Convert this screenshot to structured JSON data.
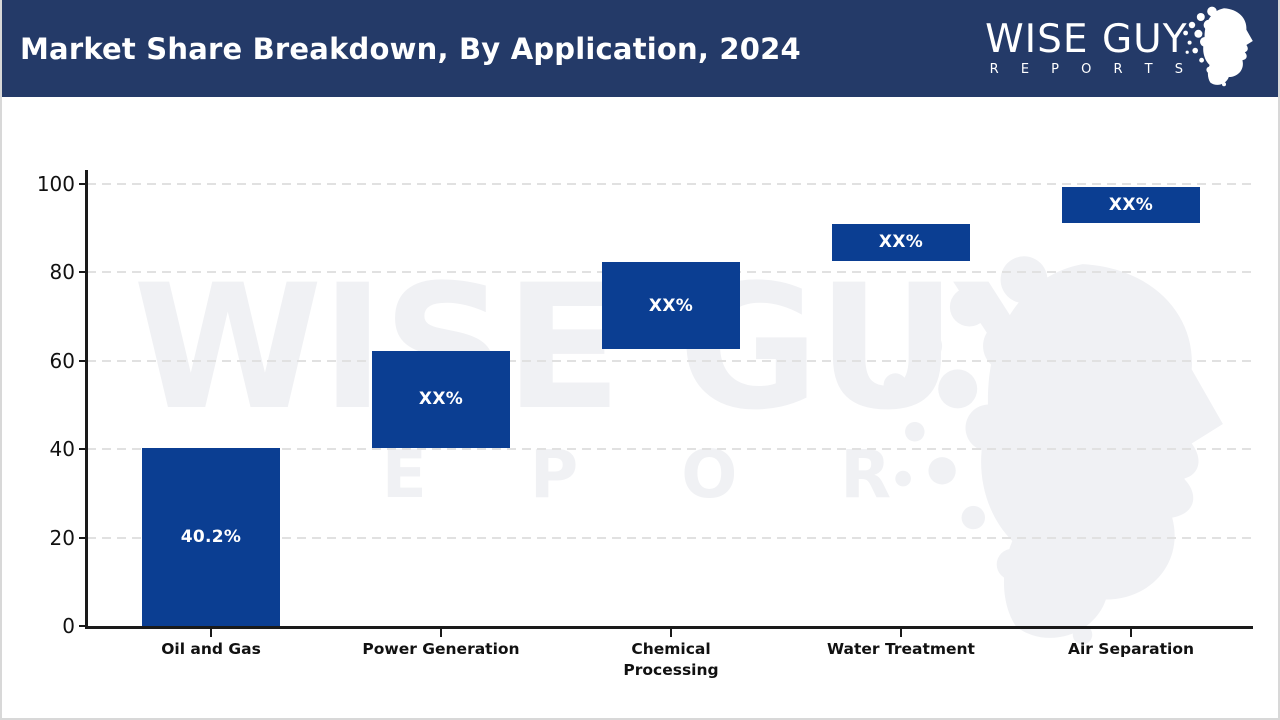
{
  "header": {
    "title": "Market Share Breakdown, By Application, 2024",
    "bg_color": "#243a68",
    "logo": {
      "line1": "WISE GUY",
      "line2": "REPORTS"
    }
  },
  "watermark": {
    "line1": "WISE GUY",
    "line2": "REPORTS"
  },
  "chart_data": {
    "type": "bar",
    "subtype": "waterfall",
    "title": "Market Share Breakdown, By Application, 2024",
    "categories": [
      "Oil and Gas",
      "Power Generation",
      "Chemical\nProcessing",
      "Water Treatment",
      "Air Separation"
    ],
    "segments": [
      {
        "category": "Oil and Gas",
        "start": 0,
        "end": 40.2,
        "label": "40.2%"
      },
      {
        "category": "Power Generation",
        "start": 40.2,
        "end": 62.3,
        "label": "XX%"
      },
      {
        "category": "Chemical Processing",
        "start": 62.6,
        "end": 82.3,
        "label": "XX%"
      },
      {
        "category": "Water Treatment",
        "start": 82.6,
        "end": 91.0,
        "label": "XX%"
      },
      {
        "category": "Air Separation",
        "start": 91.2,
        "end": 99.3,
        "label": "XX%"
      }
    ],
    "yticks": [
      0,
      20,
      40,
      60,
      80,
      100
    ],
    "ylim": [
      0,
      103
    ],
    "xlabel": "",
    "ylabel": "",
    "grid": "dashed-horizontal",
    "legend": "none",
    "bar_color": "#0b3e92",
    "bar_label_color": "#ffffff",
    "axis_color": "#1a1a1a",
    "grid_color": "#e1e1e1",
    "watermark_color": "#f0f1f4"
  }
}
